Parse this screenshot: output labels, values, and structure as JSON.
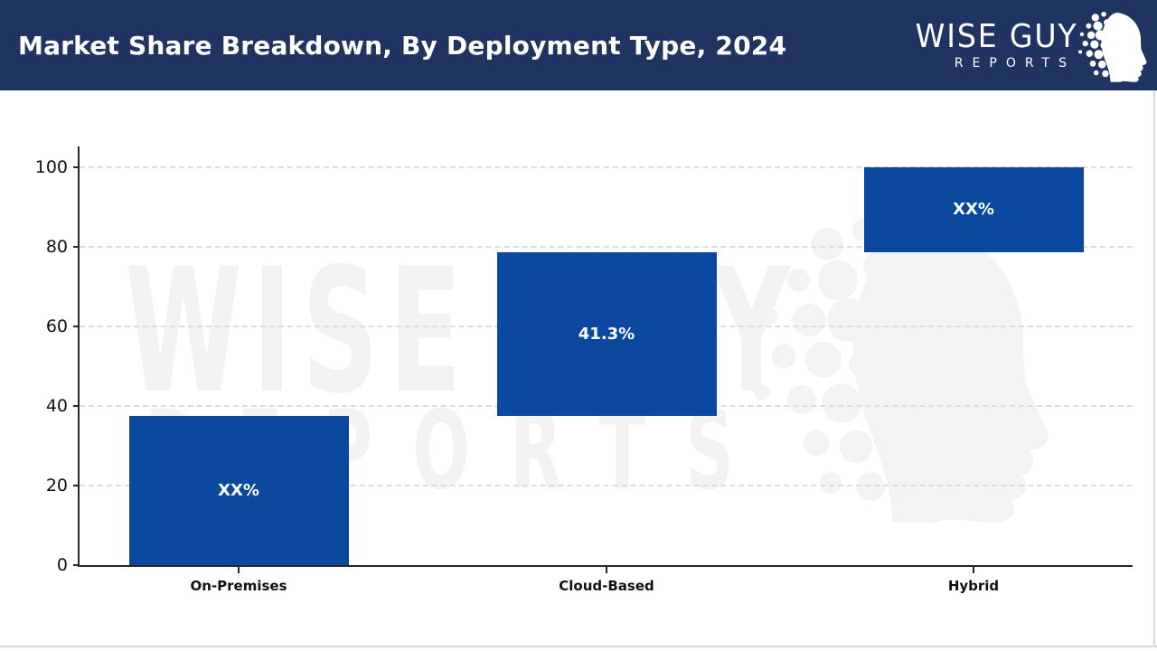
{
  "header": {
    "title": "Market Share Breakdown, By Deployment Type, 2024",
    "background_color": "#203462",
    "logo": {
      "line1": "WISE GUY",
      "line2": "REPORTS"
    }
  },
  "watermark": {
    "line1": "WISE GUY",
    "line2": "REPORTS"
  },
  "chart_data": {
    "type": "bar",
    "subtype": "waterfall",
    "title": "Market Share Breakdown, By Deployment Type, 2024",
    "categories": [
      "On-Premises",
      "Cloud-Based",
      "Hybrid"
    ],
    "segments": [
      {
        "category": "On-Premises",
        "start": 0,
        "end": 37.4,
        "value": 37.4,
        "label": "XX%"
      },
      {
        "category": "Cloud-Based",
        "start": 37.4,
        "end": 78.7,
        "value": 41.3,
        "label": "41.3%"
      },
      {
        "category": "Hybrid",
        "start": 78.7,
        "end": 100,
        "value": 21.3,
        "label": "XX%"
      }
    ],
    "xlabel": "",
    "ylabel": "",
    "ylim": [
      0,
      100
    ],
    "yticks": [
      0,
      20,
      40,
      60,
      80,
      100
    ],
    "grid": "horizontal dashed",
    "legend": "none",
    "bar_color": "#0b499f",
    "bar_label_color": "#ffffff",
    "axis_color": "#262626"
  }
}
